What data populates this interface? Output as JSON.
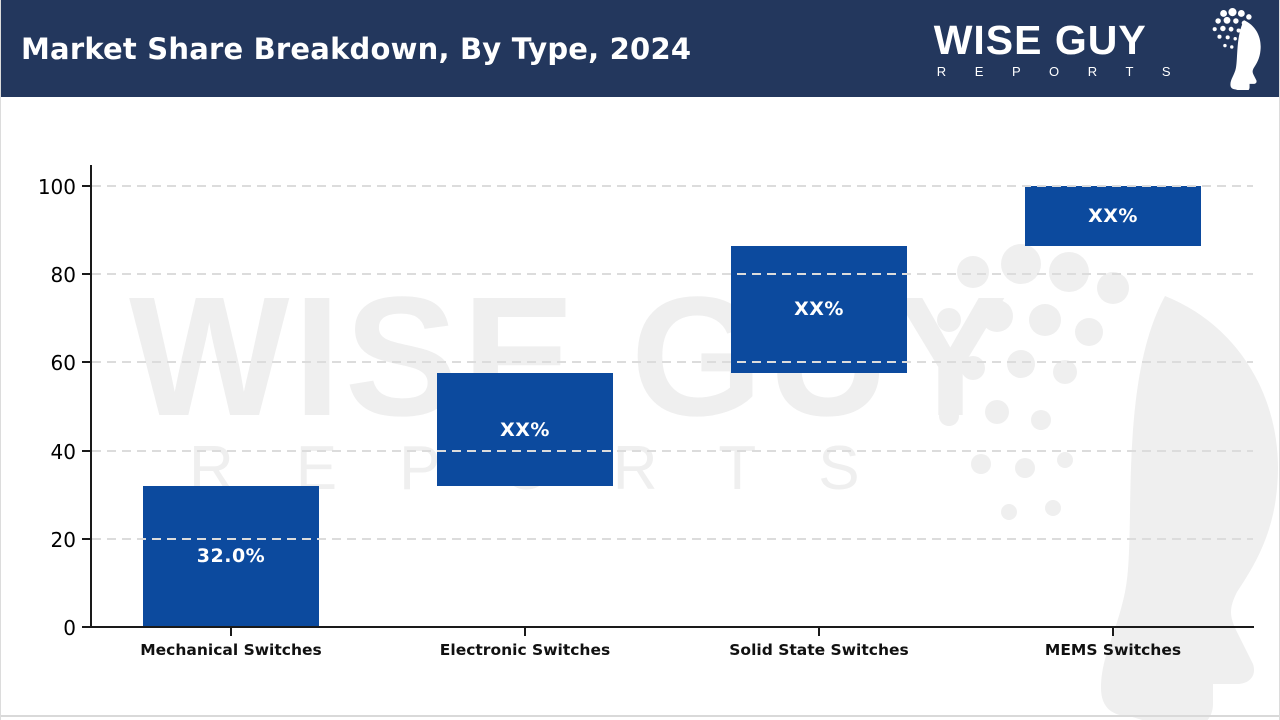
{
  "header": {
    "title": "Market Share Breakdown, By Type, 2024",
    "logo": {
      "line1": "WISE GUY",
      "line2": "R E P O R T S"
    }
  },
  "watermark": {
    "line1": "WISE GUY",
    "line2": "REPORTS"
  },
  "colors": {
    "header_bg": "#23375d",
    "bar": "#0c4a9e",
    "bar_label": "#ffffff",
    "gridline": "#dcdcdc",
    "axis": "#1a1a1a",
    "watermark": "#efefef"
  },
  "chart_data": {
    "type": "bar",
    "subtype": "waterfall",
    "title": "Market Share Breakdown, By Type, 2024",
    "categories": [
      "Mechanical Switches",
      "Electronic Switches",
      "Solid State Switches",
      "MEMS Switches"
    ],
    "bars": [
      {
        "category": "Mechanical Switches",
        "start": 0,
        "end": 32,
        "value": 32.0,
        "label": "32.0%"
      },
      {
        "category": "Electronic Switches",
        "start": 32,
        "end": 57.5,
        "value": 25.5,
        "label": "XX%"
      },
      {
        "category": "Solid State Switches",
        "start": 57.5,
        "end": 86.5,
        "value": 29.0,
        "label": "XX%"
      },
      {
        "category": "MEMS Switches",
        "start": 86.5,
        "end": 100,
        "value": 13.5,
        "label": "XX%"
      }
    ],
    "yticks": [
      0,
      20,
      40,
      60,
      80,
      100
    ],
    "ylim": [
      0,
      105
    ],
    "xlabel": "",
    "ylabel": "",
    "grid": "horizontal-dashed",
    "legend": "none"
  }
}
